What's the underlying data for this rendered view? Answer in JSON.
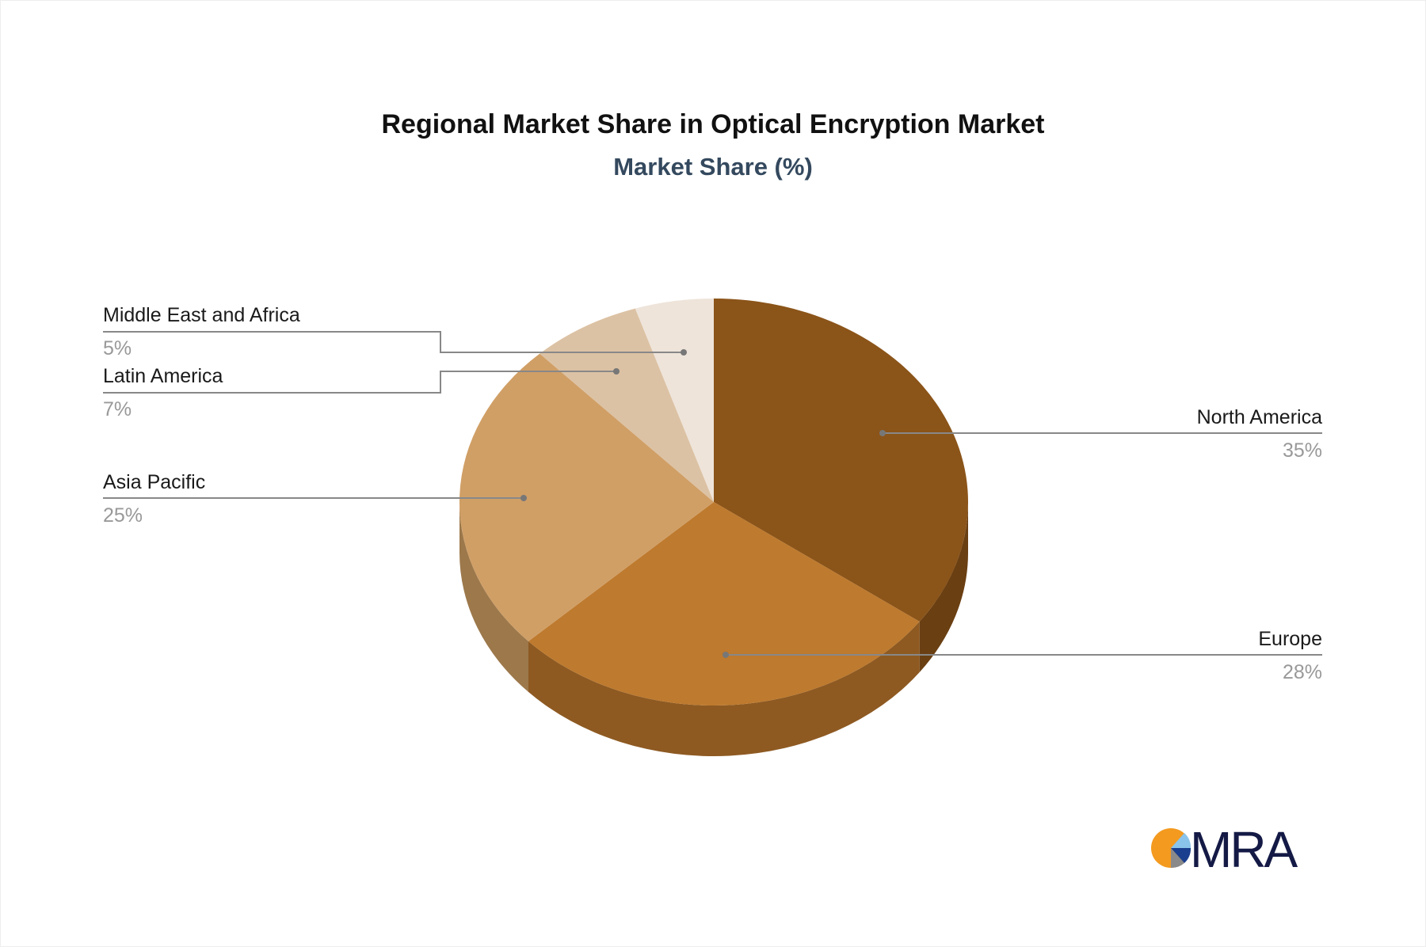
{
  "chart_data": {
    "type": "pie",
    "style": "3d",
    "title": "Regional Market Share in Optical Encryption Market",
    "subtitle": "Market Share (%)",
    "slices": [
      {
        "label": "North America",
        "value": 35,
        "display": "35%",
        "color": "#8B5419",
        "side_color": "#6A3F12"
      },
      {
        "label": "Europe",
        "value": 28,
        "display": "28%",
        "color": "#BE7A2E",
        "side_color": "#8E5A22"
      },
      {
        "label": "Asia Pacific",
        "value": 25,
        "display": "25%",
        "color": "#D09F66",
        "side_color": "#9C784B"
      },
      {
        "label": "Latin America",
        "value": 7,
        "display": "7%",
        "color": "#DCC2A4",
        "side_color": "#A8927A"
      },
      {
        "label": "Middle East and Africa",
        "value": 5,
        "display": "5%",
        "color": "#EEE4DA",
        "side_color": "#B8AEA5"
      }
    ]
  },
  "logo": {
    "text": "MRA",
    "colors": [
      "#F39A1F",
      "#8BC4EA",
      "#1B3F8F",
      "#8A8A8A",
      "#141A45"
    ]
  }
}
